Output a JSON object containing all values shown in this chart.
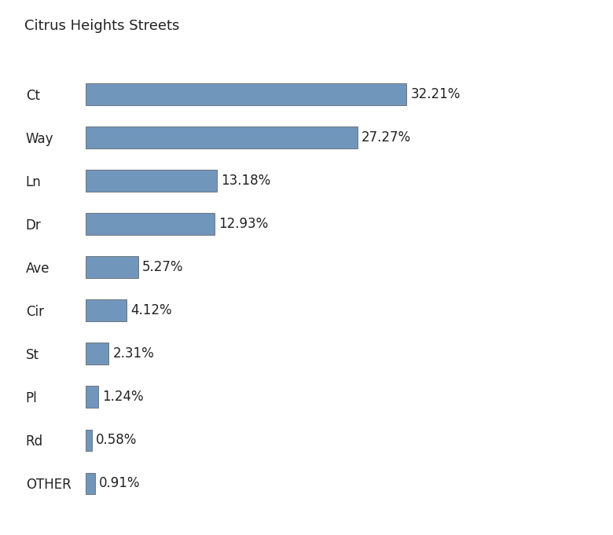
{
  "title": "Citrus Heights Streets",
  "categories": [
    "Ct",
    "Way",
    "Ln",
    "Dr",
    "Ave",
    "Cir",
    "St",
    "Pl",
    "Rd",
    "OTHER"
  ],
  "values": [
    32.21,
    27.27,
    13.18,
    12.93,
    5.27,
    4.12,
    2.31,
    1.24,
    0.58,
    0.91
  ],
  "labels": [
    "32.21%",
    "27.27%",
    "13.18%",
    "12.93%",
    "5.27%",
    "4.12%",
    "2.31%",
    "1.24%",
    "0.58%",
    "0.91%"
  ],
  "bar_color": "#7096BB",
  "background_color": "#ffffff",
  "title_fontsize": 13,
  "label_fontsize": 12,
  "tick_fontsize": 12,
  "bar_height": 0.5,
  "xlim": 48
}
